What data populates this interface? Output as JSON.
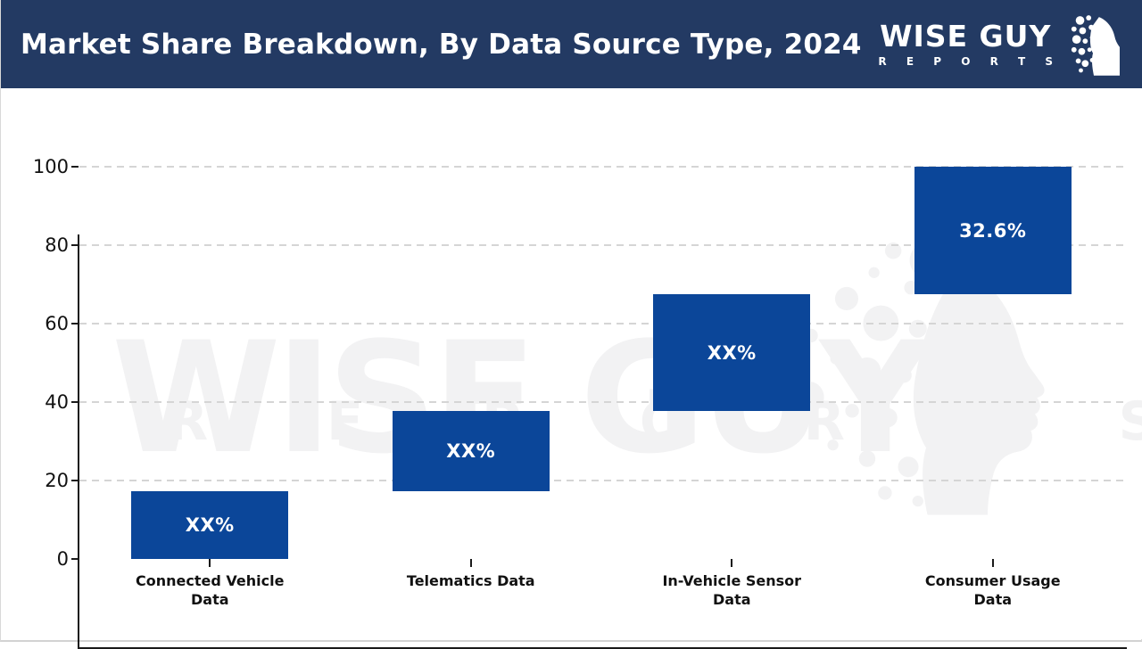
{
  "header": {
    "title": "Market Share Breakdown, By Data Source Type, 2024",
    "logo": {
      "name": "WISE GUY",
      "tagline": "R E P O R T S"
    }
  },
  "watermark": {
    "brand": "WISE GUY",
    "tagline": "R E P O R T S"
  },
  "chart_data": {
    "type": "bar",
    "subtype": "floating-segment-breakdown",
    "title": "Market Share Breakdown, By Data Source Type, 2024",
    "categories": [
      "Connected Vehicle Data",
      "Telematics Data",
      "In-Vehicle Sensor Data",
      "Consumer Usage Data"
    ],
    "category_lines": [
      [
        "Connected Vehicle",
        "Data"
      ],
      [
        "Telematics Data"
      ],
      [
        "In-Vehicle Sensor",
        "Data"
      ],
      [
        "Consumer Usage",
        "Data"
      ]
    ],
    "segments": [
      {
        "category": "Connected Vehicle Data",
        "from": 0,
        "to": 17.3,
        "label": "XX%"
      },
      {
        "category": "Telematics Data",
        "from": 17.3,
        "to": 37.7,
        "label": "XX%"
      },
      {
        "category": "In-Vehicle Sensor Data",
        "from": 37.7,
        "to": 67.4,
        "label": "XX%"
      },
      {
        "category": "Consumer Usage Data",
        "from": 67.4,
        "to": 100,
        "label": "32.6%"
      }
    ],
    "xlabel": "",
    "ylabel": "",
    "yticks": [
      0,
      20,
      40,
      60,
      80,
      100
    ],
    "ylim": [
      0,
      105
    ],
    "grid": "horizontal-dashed",
    "legend": "none"
  },
  "colors": {
    "header_bg": "#233a63",
    "title_text": "#ffffff",
    "bar": "#0b4699",
    "bar_label": "#ffffff",
    "axis": "#1a1a1a",
    "tick_text": "#111111",
    "gridline": "#d5d5d5",
    "watermark": "#f2f2f3"
  }
}
